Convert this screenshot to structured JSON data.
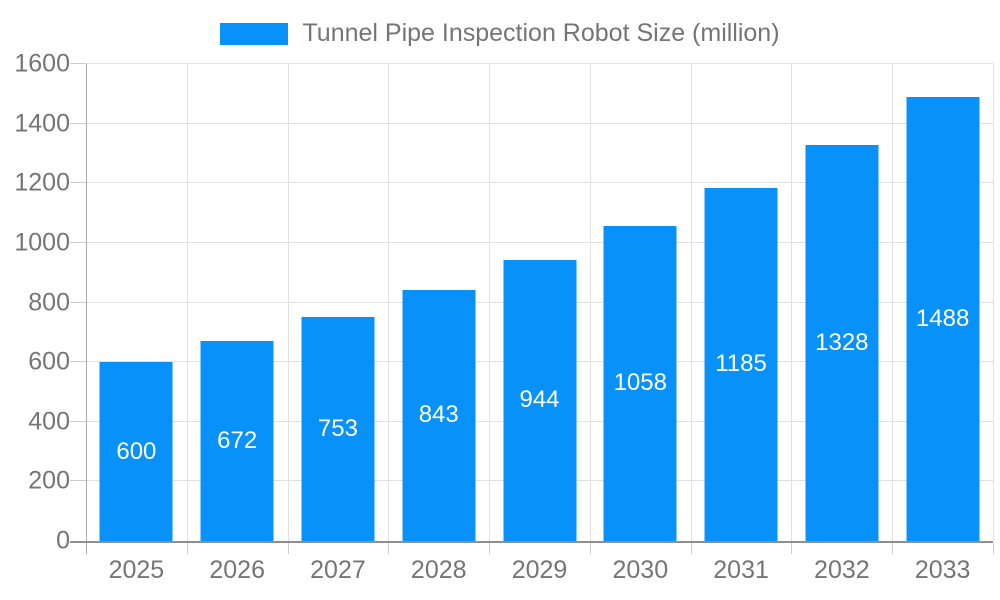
{
  "chart_data": {
    "type": "bar",
    "title": "Tunnel Pipe Inspection Robot Size (million)",
    "categories": [
      "2025",
      "2026",
      "2027",
      "2028",
      "2029",
      "2030",
      "2031",
      "2032",
      "2033"
    ],
    "values": [
      600,
      672,
      753,
      843,
      944,
      1058,
      1185,
      1328,
      1488
    ],
    "xlabel": "",
    "ylabel": "",
    "ylim": [
      0,
      1600
    ],
    "yticks": [
      0,
      200,
      400,
      600,
      800,
      1000,
      1200,
      1400,
      1600
    ],
    "grid": true,
    "legend_position": "top",
    "bar_color": "#0891f8",
    "value_label_color": "#ffffff",
    "axis_text_color": "#757575",
    "gridline_color": "#e0e0e0",
    "axis_line_color": "#8f8f8f"
  },
  "legend": {
    "label": "Tunnel Pipe Inspection Robot Size (million)"
  }
}
